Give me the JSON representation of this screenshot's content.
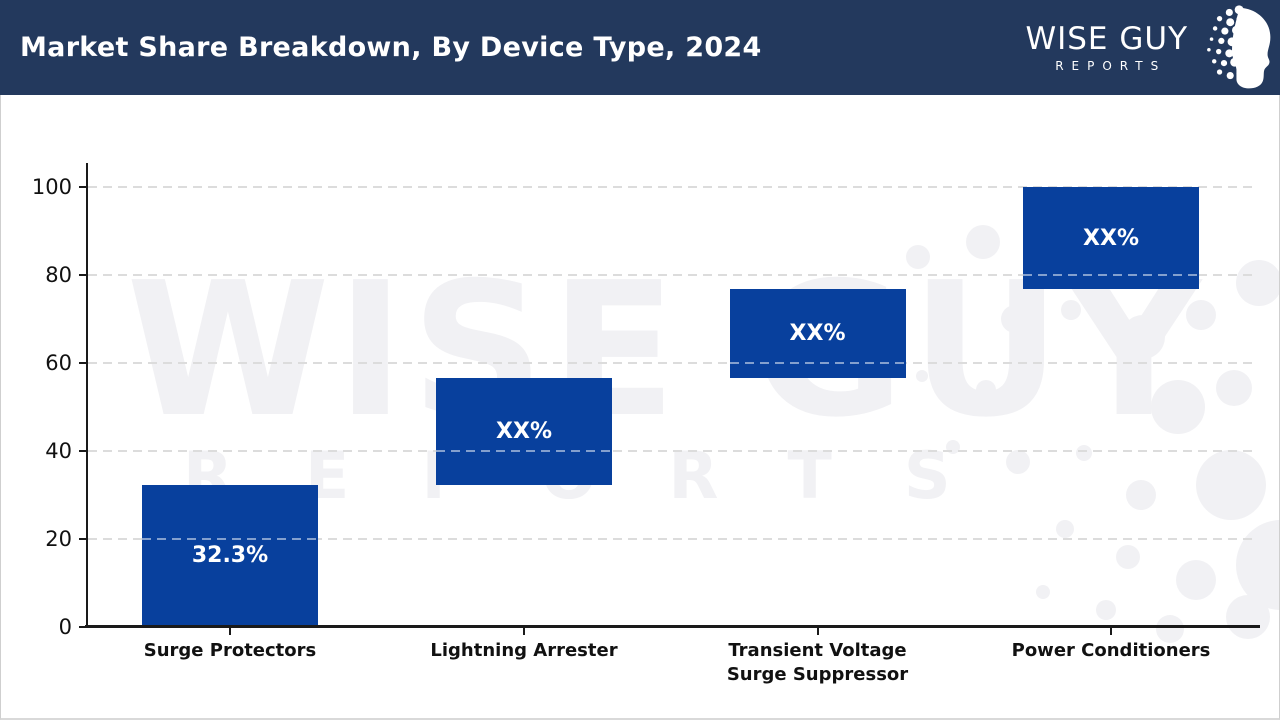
{
  "header": {
    "title": "Market Share Breakdown, By Device Type, 2024",
    "logo": {
      "wordmark": "WISE GUY",
      "subtext": "REPORTS"
    },
    "bg_color": "#23395d"
  },
  "watermark": {
    "big_text": "WISE GUY",
    "small_text": "REPORTS"
  },
  "chart_data": {
    "type": "bar",
    "variant": "waterfall",
    "title": "Market Share Breakdown, By Device Type, 2024",
    "categories": [
      "Surge Protectors",
      "Lightning Arrester",
      "Transient Voltage\nSurge Suppressor",
      "Power Conditioners"
    ],
    "segments": [
      {
        "category": "Surge Protectors",
        "start": 0,
        "end": 32.3,
        "label": "32.3%"
      },
      {
        "category": "Lightning Arrester",
        "start": 32.3,
        "end": 56.6,
        "label": "XX%"
      },
      {
        "category": "Transient Voltage Surge Suppressor",
        "start": 56.6,
        "end": 76.8,
        "label": "XX%"
      },
      {
        "category": "Power Conditioners",
        "start": 76.8,
        "end": 100,
        "label": "XX%"
      }
    ],
    "xlabel": "",
    "ylabel": "",
    "ylim": [
      0,
      100
    ],
    "yticks": [
      0,
      20,
      40,
      60,
      80,
      100
    ],
    "grid": "dashed-horizontal",
    "legend": "none",
    "bar_color": "#08409d",
    "bar_label_color": "#ffffff"
  }
}
